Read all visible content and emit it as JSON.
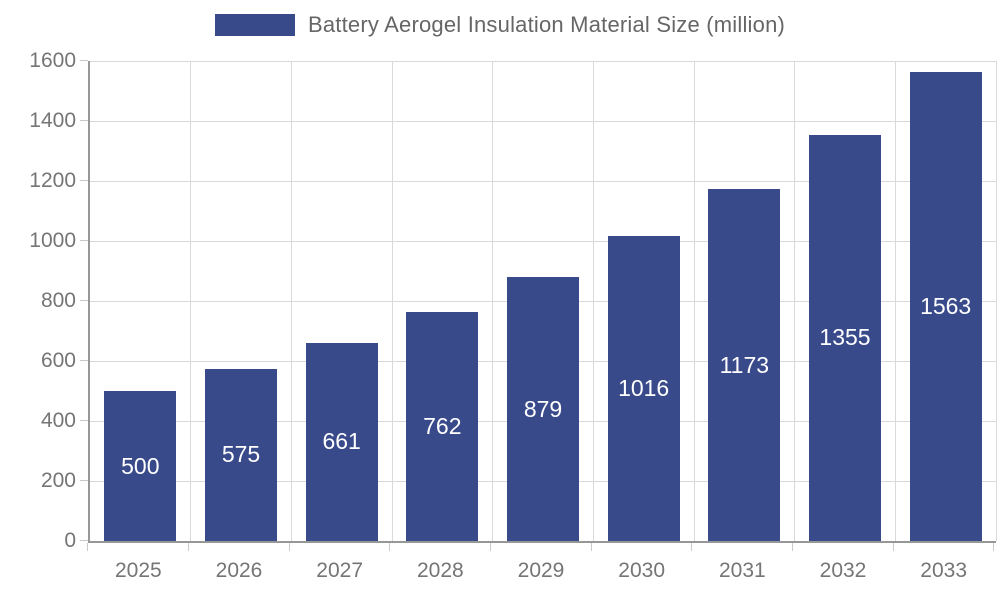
{
  "legend": {
    "label": "Battery Aerogel Insulation Material Size (million)"
  },
  "colors": {
    "bar": "#394a8b",
    "value_label": "#ffffff",
    "grid": "#d9d9d9",
    "axis": "#979797",
    "tick": "#c9c9c9",
    "tick_label": "#757575",
    "title": "#666666"
  },
  "chart_data": {
    "type": "bar",
    "title": "Battery Aerogel Insulation Material Size (million)",
    "categories": [
      "2025",
      "2026",
      "2027",
      "2028",
      "2029",
      "2030",
      "2031",
      "2032",
      "2033"
    ],
    "values": [
      500,
      575,
      661,
      762,
      879,
      1016,
      1173,
      1355,
      1563
    ],
    "value_labels": [
      "500",
      "575",
      "661",
      "762",
      "879",
      "1016",
      "1173",
      "1355",
      "1563"
    ],
    "xlabel": "",
    "ylabel": "",
    "ylim": [
      0,
      1600
    ],
    "yticks": [
      0,
      200,
      400,
      600,
      800,
      1000,
      1200,
      1400,
      1600
    ],
    "grid": "on",
    "legend_position": "top"
  }
}
